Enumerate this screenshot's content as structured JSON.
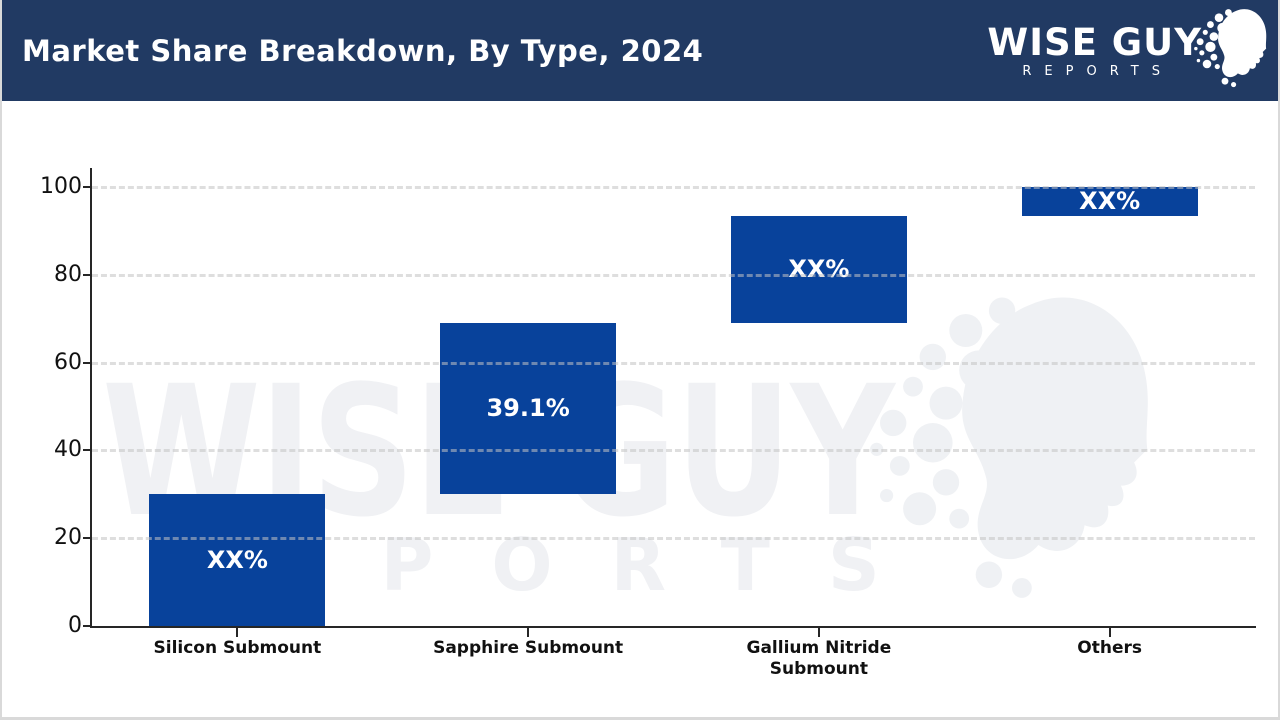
{
  "header": {
    "title": "Market Share Breakdown, By Type, 2024",
    "background_color": "#213a63"
  },
  "logo": {
    "brand": "WISE GUY",
    "sub": "REPORTS"
  },
  "watermark": {
    "brand": "WISE GUY",
    "sub": "REPORTS"
  },
  "chart_data": {
    "type": "bar",
    "subtype": "floating-stacked-segments",
    "title": "Market Share Breakdown, By Type, 2024",
    "categories": [
      "Silicon Submount",
      "Sapphire Submount",
      "Gallium Nitride Submount",
      "Others"
    ],
    "segments": [
      {
        "category": "Silicon Submount",
        "start": 0,
        "end": 30,
        "label": "XX%"
      },
      {
        "category": "Sapphire Submount",
        "start": 30,
        "end": 69.1,
        "label": "39.1%"
      },
      {
        "category": "Gallium Nitride Submount",
        "start": 69.1,
        "end": 93.4,
        "label": "XX%"
      },
      {
        "category": "Others",
        "start": 93.4,
        "end": 100,
        "label": "XX%"
      }
    ],
    "yticks": [
      0,
      20,
      40,
      60,
      80,
      100
    ],
    "ylim": [
      0,
      104
    ],
    "grid": true,
    "grid_style": "dashed",
    "legend": "none",
    "bar_color": "#08429b",
    "bar_label_color": "#ffffff",
    "axis_color": "#262626"
  }
}
